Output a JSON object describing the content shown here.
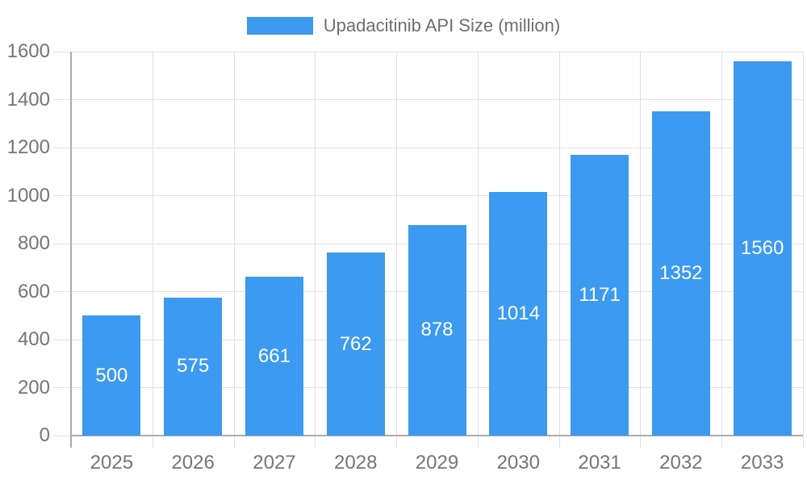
{
  "colors": {
    "bar": "#3C9AF0",
    "value_label": "#FFFFFF",
    "axis_text": "#757575",
    "legend_text": "#6E6E6E",
    "grid": "#E0E0E0",
    "axis_line": "#ABABAB",
    "background": "#FFFFFF"
  },
  "chart_data": {
    "type": "bar",
    "title": "Upadacitinib API Size (million)",
    "categories": [
      "2025",
      "2026",
      "2027",
      "2028",
      "2029",
      "2030",
      "2031",
      "2032",
      "2033"
    ],
    "values": [
      500,
      575,
      661,
      762,
      878,
      1014,
      1171,
      1352,
      1560
    ],
    "value_labels": [
      "500",
      "575",
      "661",
      "762",
      "878",
      "1014",
      "1171",
      "1352",
      "1560"
    ],
    "xlabel": "",
    "ylabel": "",
    "ylim": [
      0,
      1600
    ],
    "ytick_step": 200,
    "ytick_labels": [
      "0",
      "200",
      "400",
      "600",
      "800",
      "1000",
      "1200",
      "1400",
      "1600"
    ],
    "grid": "horizontal-and-vertical",
    "legend_position": "top-center",
    "value_label_position": "inside-center"
  }
}
